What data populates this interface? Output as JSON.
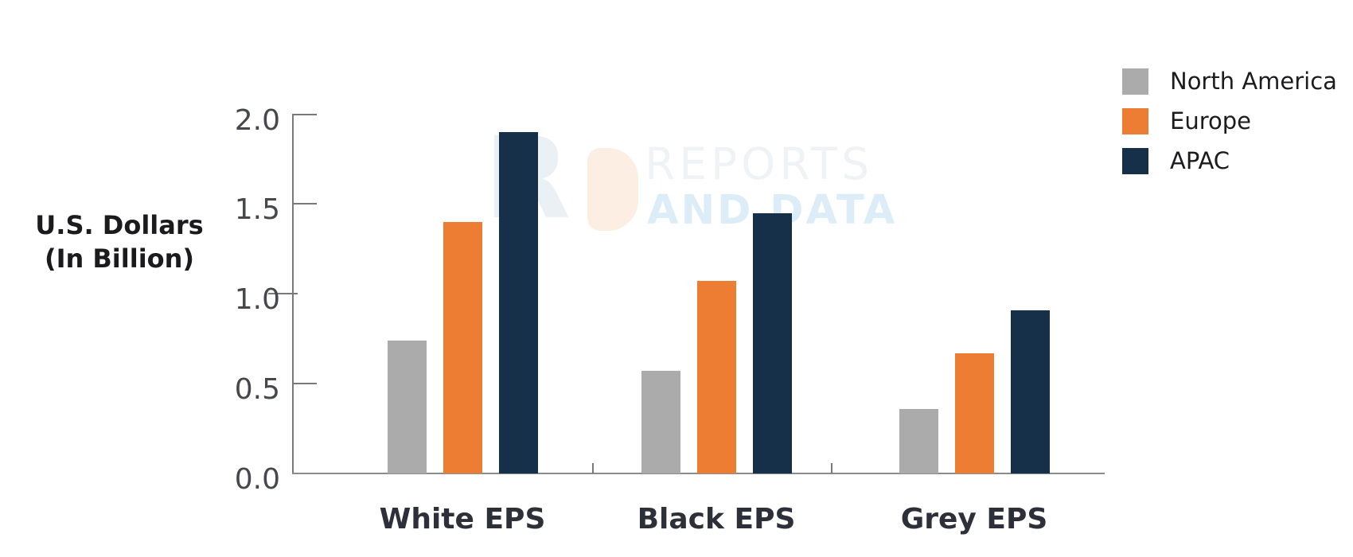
{
  "chart_data": {
    "type": "bar",
    "title": "",
    "categories": [
      "White EPS",
      "Black EPS",
      "Grey EPS"
    ],
    "series": [
      {
        "name": "North America",
        "color": "#ABABAB",
        "values": [
          0.74,
          0.57,
          0.36
        ]
      },
      {
        "name": "Europe",
        "color": "#EC7D33",
        "values": [
          1.4,
          1.07,
          0.67
        ]
      },
      {
        "name": "APAC",
        "color": "#16304A",
        "values": [
          1.9,
          1.45,
          0.91
        ]
      }
    ],
    "xlabel": "",
    "ylabel": "U.S. Dollars (In Billion)",
    "ylabel_lines": [
      "U.S. Dollars",
      "(In Billion)"
    ],
    "ytick_labels": [
      "0.0",
      "0.5",
      "1.0",
      "1.5",
      "2.0"
    ],
    "yticks": [
      0.0,
      0.5,
      1.0,
      1.5,
      2.0
    ],
    "ylim": [
      0.0,
      2.0
    ],
    "grid": false,
    "legend_position": "top-right"
  },
  "watermark": {
    "logo_letter": "R",
    "line1": "REPORTS",
    "line2": "AND DATA"
  },
  "colors": {
    "north_america": "#ABABAB",
    "europe": "#EC7D33",
    "apac": "#16304A",
    "axis": "#77797c",
    "tick_label": "#46484d",
    "category_label": "#2e3039",
    "legend_label": "#1c1c1e"
  }
}
